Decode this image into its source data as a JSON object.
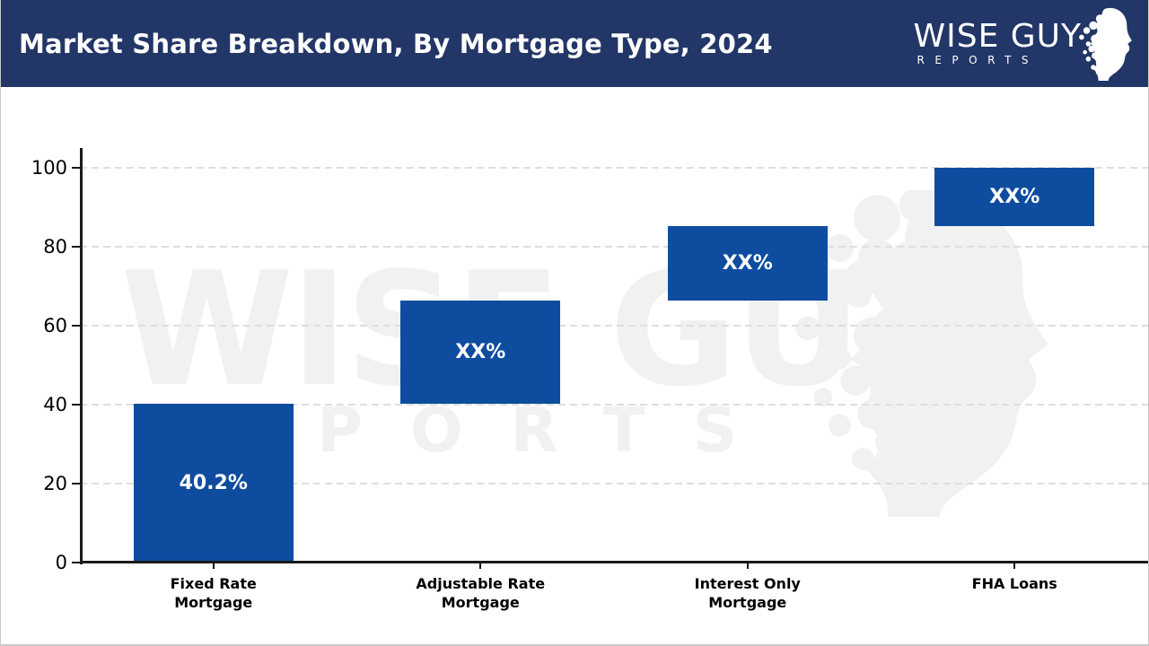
{
  "header": {
    "title": "Market Share Breakdown, By Mortgage Type, 2024",
    "logo": {
      "wordmark": "WISE GUY",
      "subtitle": "REPORTS"
    }
  },
  "watermark": {
    "line1": "WISE GUY",
    "line2": "REPORTS"
  },
  "chart_data": {
    "type": "bar",
    "subtype": "waterfall",
    "title": "Market Share Breakdown, By Mortgage Type, 2024",
    "categories": [
      [
        "Fixed Rate",
        "Mortgage"
      ],
      [
        "Adjustable Rate",
        "Mortgage"
      ],
      [
        "Interest Only",
        "Mortgage"
      ],
      [
        "FHA Loans"
      ]
    ],
    "segments": [
      {
        "category": "Fixed Rate Mortgage",
        "start": 0,
        "end": 40.2,
        "label": "40.2%"
      },
      {
        "category": "Adjustable Rate Mortgage",
        "start": 40.2,
        "end": 66.4,
        "label": "XX%"
      },
      {
        "category": "Interest Only Mortgage",
        "start": 66.4,
        "end": 85.2,
        "label": "XX%"
      },
      {
        "category": "FHA Loans",
        "start": 85.2,
        "end": 100,
        "label": "XX%"
      }
    ],
    "ylim": [
      0,
      100
    ],
    "yticks": [
      0,
      20,
      40,
      60,
      80,
      100
    ],
    "xlabel": "",
    "ylabel": "",
    "legend": "none",
    "grid": "horizontal dashed"
  },
  "colors": {
    "header_bg": "#223667",
    "bar": "#0e4c9f",
    "gridline": "#dedede",
    "axis": "#1a1a1a",
    "watermark": "#f1f1f2"
  }
}
